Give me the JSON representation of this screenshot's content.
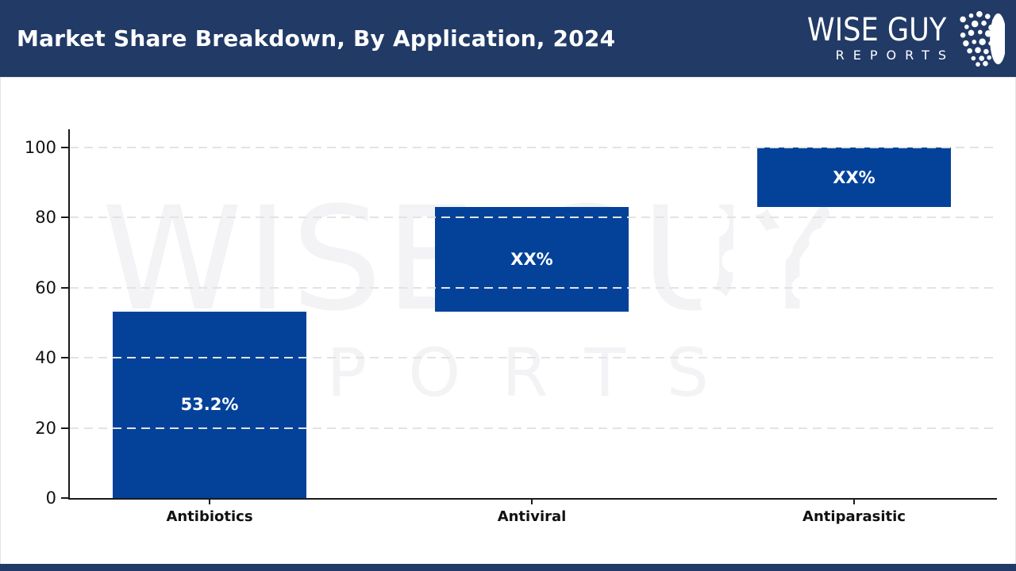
{
  "header": {
    "title": "Market Share Breakdown, By Application, 2024",
    "logo": {
      "line1": "WISE GUY",
      "line2": "REPORTS"
    }
  },
  "watermark": {
    "line1": "WISE GUY",
    "line2": "REPORTS"
  },
  "colors": {
    "header_bg": "#213A66",
    "footer_bg": "#213A66",
    "bar": "#04429A",
    "gridline": "#E3E3E3",
    "axis": "#1A1A1A",
    "watermark": "#F3F3F6"
  },
  "chart_data": {
    "type": "bar",
    "subtype": "floating-waterfall",
    "title": "Market Share Breakdown, By Application, 2024",
    "categories": [
      "Antibiotics",
      "Antiviral",
      "Antiparasitic"
    ],
    "bars": [
      {
        "category": "Antibiotics",
        "start": 0,
        "end": 53.2,
        "label": "53.2%"
      },
      {
        "category": "Antiviral",
        "start": 53.2,
        "end": 83,
        "label": "XX%"
      },
      {
        "category": "Antiparasitic",
        "start": 83,
        "end": 100,
        "label": "XX%"
      }
    ],
    "segment_sizes": [
      53.2,
      29.8,
      17
    ],
    "xlabel": "",
    "ylabel": "",
    "ylim": [
      0,
      100
    ],
    "yticks": [
      0,
      20,
      40,
      60,
      80,
      100
    ],
    "grid": "horizontal-dashed",
    "legend": "none",
    "bar_color": "#04429A",
    "value_label_color": "#FFFFFF"
  }
}
